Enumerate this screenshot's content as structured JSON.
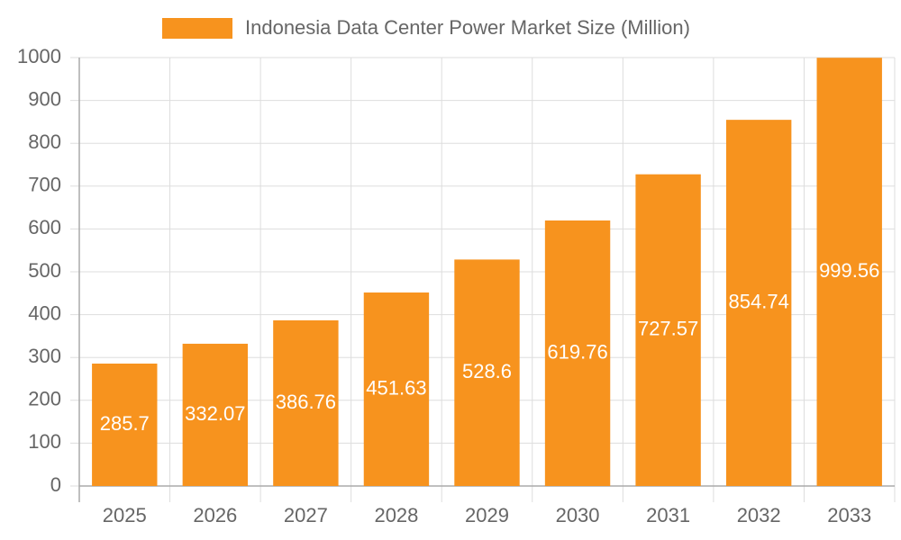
{
  "chart_data": {
    "type": "bar",
    "categories": [
      "2025",
      "2026",
      "2027",
      "2028",
      "2029",
      "2030",
      "2031",
      "2032",
      "2033"
    ],
    "series": [
      {
        "name": "Indonesia Data Center Power Market Size (Million)",
        "color": "#f7931e",
        "values": [
          285.7,
          332.07,
          386.76,
          451.63,
          528.6,
          619.76,
          727.57,
          854.74,
          999.56
        ]
      }
    ],
    "ylim": [
      0,
      1000
    ],
    "yticks": [
      0,
      100,
      200,
      300,
      400,
      500,
      600,
      700,
      800,
      900,
      1000
    ],
    "grid": true,
    "legend": "top"
  }
}
